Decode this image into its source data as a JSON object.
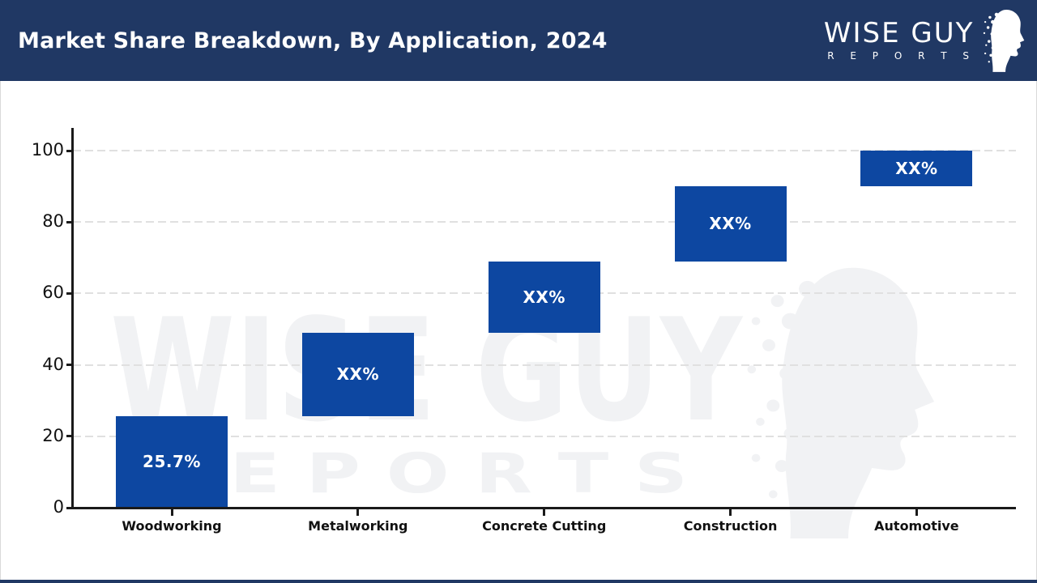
{
  "header": {
    "title": "Market Share Breakdown, By Application, 2024",
    "logo": {
      "wordmark": "WISE GUY",
      "subtext": "R E P O R T S"
    }
  },
  "watermark": {
    "wordmark": "WISE GUY",
    "subtext": "R E P O R T S"
  },
  "chart_data": {
    "type": "bar",
    "subtype": "floating-waterfall",
    "title": "Market Share Breakdown, By Application, 2024",
    "categories": [
      "Woodworking",
      "Metalworking",
      "Concrete Cutting",
      "Construction",
      "Automotive"
    ],
    "segments": [
      {
        "category": "Woodworking",
        "start": 0,
        "end": 25.7,
        "label": "25.7%"
      },
      {
        "category": "Metalworking",
        "start": 25.7,
        "end": 49,
        "label": "XX%"
      },
      {
        "category": "Concrete Cutting",
        "start": 49,
        "end": 69,
        "label": "XX%"
      },
      {
        "category": "Construction",
        "start": 69,
        "end": 90,
        "label": "XX%"
      },
      {
        "category": "Automotive",
        "start": 90,
        "end": 100,
        "label": "XX%"
      }
    ],
    "yticks": [
      0,
      20,
      40,
      60,
      80,
      100
    ],
    "ylim": [
      0,
      106
    ],
    "xlabel": "",
    "ylabel": "",
    "grid": "horizontal-dashed",
    "legend": "none",
    "bar_label_color": "#ffffff"
  },
  "colors": {
    "header_bg": "#203864",
    "footer_bg": "#203864",
    "bar": "#0d47a1",
    "axis": "#1a1a1a",
    "gridline": "#e0e0e0",
    "watermark": "#f1f2f4",
    "title_text": "#ffffff"
  }
}
